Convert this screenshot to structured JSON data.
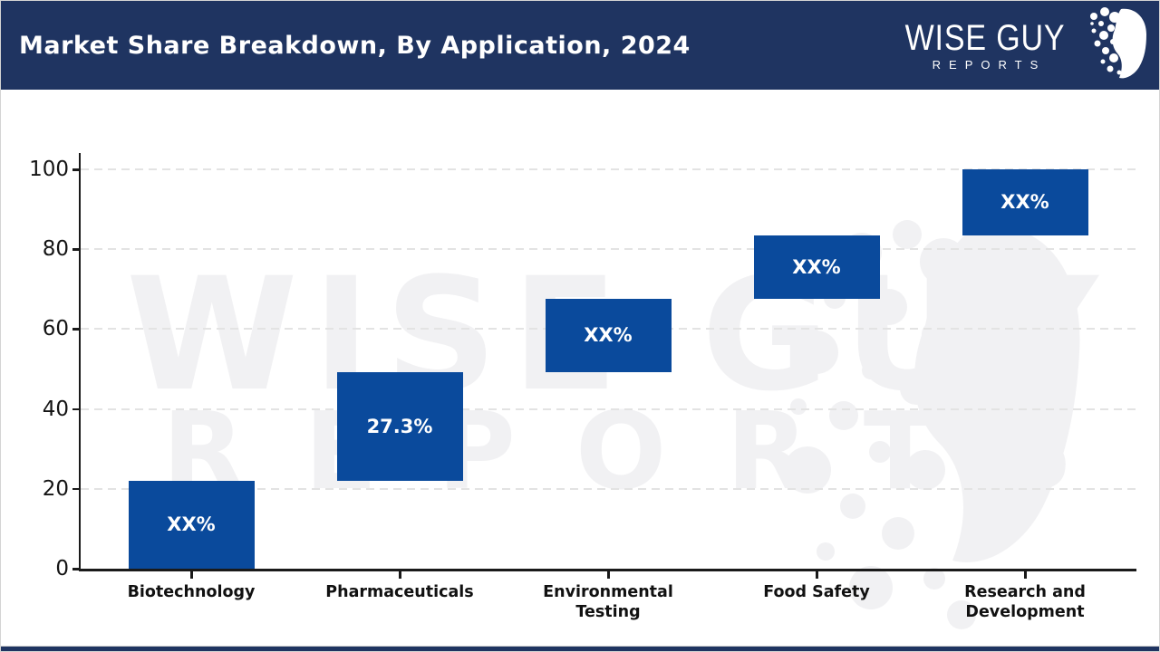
{
  "header": {
    "title": "Market Share Breakdown, By Application, 2024",
    "logo": {
      "line1": "WISE GUY",
      "line2": "REPORTS"
    }
  },
  "watermark": {
    "line1": "WISE GUY",
    "line2": "REPORTS"
  },
  "chart_data": {
    "type": "bar",
    "subtype": "waterfall-floating-bars",
    "title": "Market Share Breakdown, By Application, 2024",
    "categories": [
      "Biotechnology",
      "Pharmaceuticals",
      "Environmental\nTesting",
      "Food Safety",
      "Research and\nDevelopment"
    ],
    "segments": [
      [
        0,
        22
      ],
      [
        22,
        49.3
      ],
      [
        49.3,
        67.5
      ],
      [
        67.5,
        83.5
      ],
      [
        83.5,
        100
      ]
    ],
    "values": [
      22,
      27.3,
      18.2,
      16,
      16.5
    ],
    "bar_labels": [
      "XX%",
      "27.3%",
      "XX%",
      "XX%",
      "XX%"
    ],
    "yticks": [
      0,
      20,
      40,
      60,
      80,
      100
    ],
    "ylim": [
      0,
      103.5
    ],
    "xlabel": "",
    "ylabel": "",
    "grid": "horizontal-dashed",
    "legend": "none",
    "bar_color": "#0a4a9c",
    "bar_label_color": "#ffffff"
  },
  "colors": {
    "header_bg": "#1f3461",
    "bar": "#0a4a9c",
    "axis": "#1a1a1a",
    "grid": "#e3e3e3",
    "watermark": "#f1f1f3",
    "page_border": "#d4d4d4"
  }
}
